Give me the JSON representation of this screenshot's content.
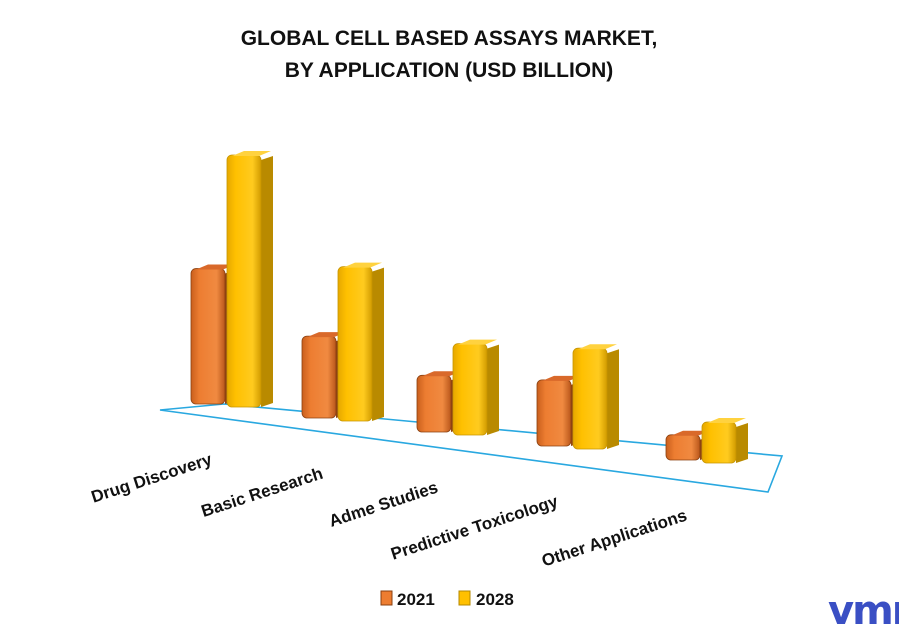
{
  "chart_data": {
    "type": "bar",
    "title": [
      "GLOBAL CELL BASED ASSAYS MARKET,",
      "BY APPLICATION (USD BILLION)"
    ],
    "categories": [
      "Drug Discovery",
      "Basic Research",
      "Adme Studies",
      "Predictive Toxicology",
      "Other Applications"
    ],
    "series": [
      {
        "name": "2021",
        "values": [
          4.3,
          2.6,
          1.8,
          2.1,
          0.8
        ]
      },
      {
        "name": "2028",
        "values": [
          8.0,
          4.9,
          2.9,
          3.2,
          1.3
        ]
      }
    ],
    "ylim": [
      0,
      8.5
    ],
    "grid": false,
    "legend": "bottom",
    "colors": {
      "2021": "#ed7d31",
      "2028": "#ffc000",
      "floor": "#29a8e0"
    }
  },
  "logo": {
    "text": "vmr",
    "color": "#3a4fc4"
  }
}
